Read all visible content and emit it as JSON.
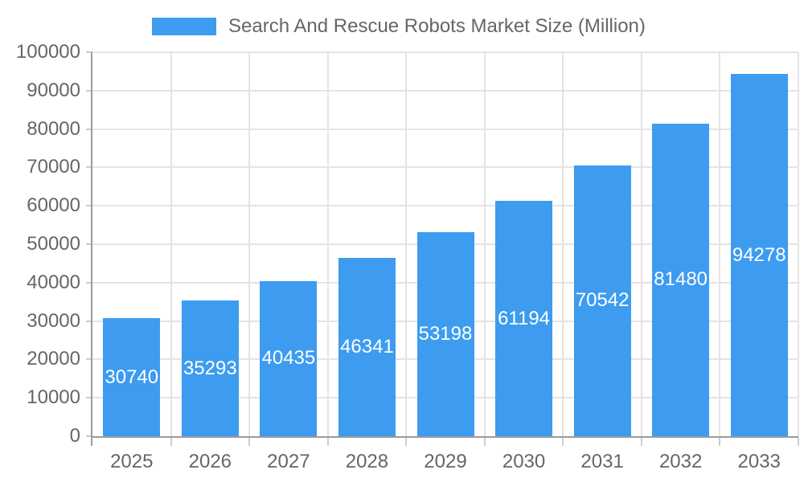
{
  "legend": {
    "label": "Search And Rescue Robots Market Size (Million)",
    "swatch_color": "#3d9cf0"
  },
  "chart_data": {
    "type": "bar",
    "title": "Search And Rescue Robots Market Size (Million)",
    "categories": [
      "2025",
      "2026",
      "2027",
      "2028",
      "2029",
      "2030",
      "2031",
      "2032",
      "2033"
    ],
    "series": [
      {
        "name": "Search And Rescue Robots Market Size (Million)",
        "values": [
          30740,
          35293,
          40435,
          46341,
          53198,
          61194,
          70542,
          81480,
          94278
        ]
      }
    ],
    "value_labels_position": "inside-center",
    "xlabel": "",
    "ylabel": "",
    "ylim": [
      0,
      100000
    ],
    "ytick_step": 10000,
    "yticks": [
      "0",
      "10000",
      "20000",
      "30000",
      "40000",
      "50000",
      "60000",
      "70000",
      "80000",
      "90000",
      "100000"
    ],
    "grid": true,
    "legend_position": "top",
    "colors": {
      "bar": "#3d9cf0",
      "value_label": "#ffffff",
      "axis_text": "#666666",
      "grid_line": "#e4e4e4",
      "tick": "#cccccc",
      "axis_line": "#9b9b9b",
      "background": "#ffffff"
    }
  }
}
